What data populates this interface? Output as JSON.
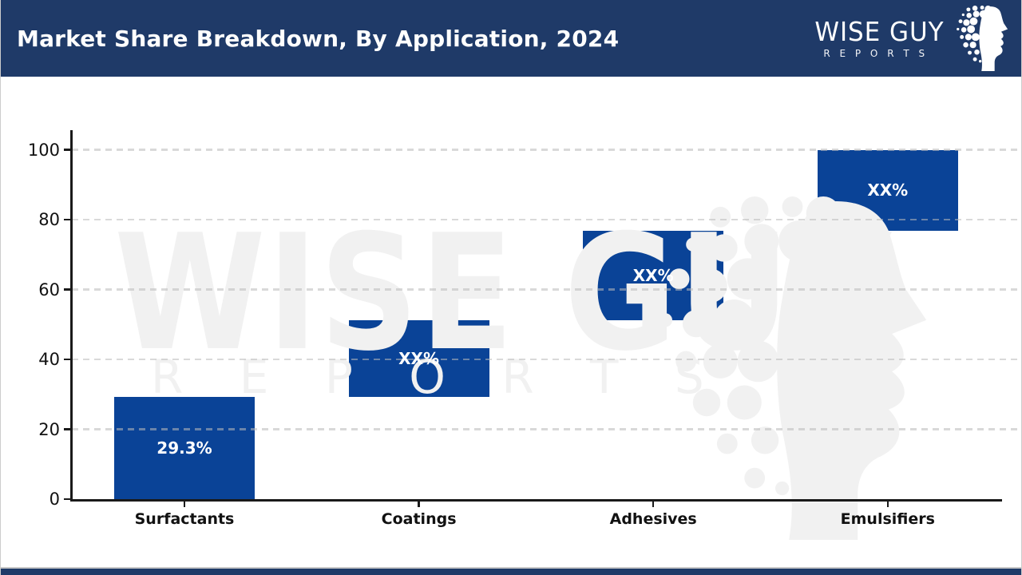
{
  "header": {
    "title": "Market Share Breakdown, By Application, 2024",
    "logo": {
      "wordmark": "WISE GUY",
      "subtext": "R E P O R T S"
    }
  },
  "watermark": {
    "wordmark": "WISE GUY",
    "subtext": "R E P O R T S"
  },
  "chart_data": {
    "type": "bar",
    "subtype": "waterfall",
    "title": "Market Share Breakdown, By Application, 2024",
    "categories": [
      "Surfactants",
      "Coatings",
      "Adhesives",
      "Emulsifiers"
    ],
    "bars": [
      {
        "category": "Surfactants",
        "start": 0,
        "end": 29.3,
        "label": "29.3%"
      },
      {
        "category": "Coatings",
        "start": 29.3,
        "end": 51.3,
        "label": "XX%"
      },
      {
        "category": "Adhesives",
        "start": 51.3,
        "end": 76.9,
        "label": "XX%"
      },
      {
        "category": "Emulsifiers",
        "start": 76.9,
        "end": 100,
        "label": "XX%"
      }
    ],
    "xlabel": "",
    "ylabel": "",
    "yticks": [
      0,
      20,
      40,
      60,
      80,
      100
    ],
    "ylim": [
      0,
      105
    ],
    "grid": true,
    "grid_style": "dashed",
    "legend_position": "none",
    "bar_color": "#0a4397",
    "bar_label_color": "#ffffff",
    "axis_color": "#1a1a1a",
    "grid_color": "#d9d9d9"
  },
  "colors": {
    "header_bg": "#1f3a68",
    "footer_bg": "#1f3a68",
    "bar": "#0a4397",
    "watermark": "#f1f1f1"
  }
}
